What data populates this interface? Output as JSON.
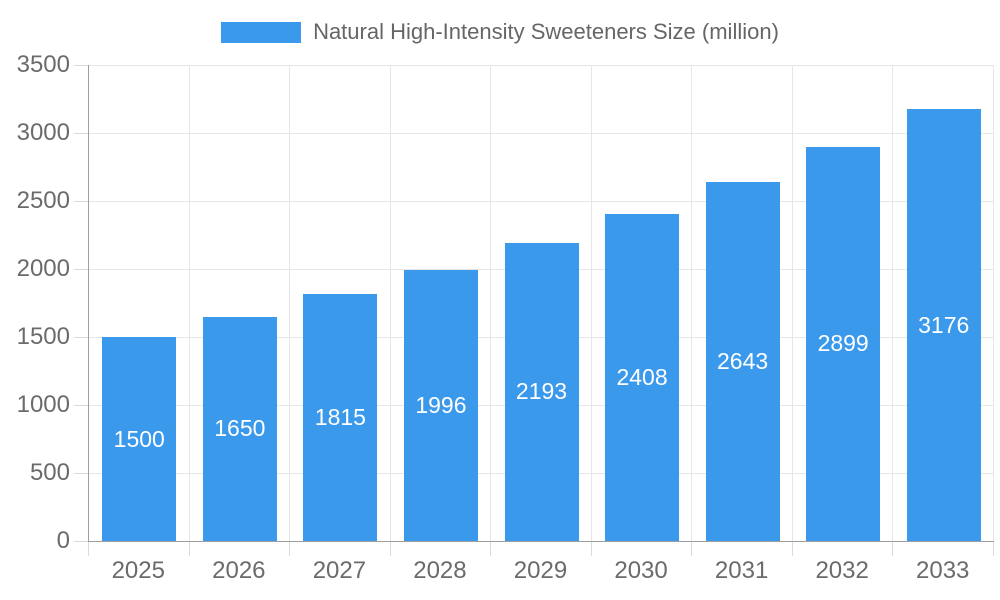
{
  "chart_data": {
    "type": "bar",
    "title": "Natural High-Intensity Sweeteners Size (million)",
    "categories": [
      "2025",
      "2026",
      "2027",
      "2028",
      "2029",
      "2030",
      "2031",
      "2032",
      "2033"
    ],
    "values": [
      1500,
      1650,
      1815,
      1996,
      2193,
      2408,
      2643,
      2899,
      3176
    ],
    "xlabel": "",
    "ylabel": "",
    "ylim": [
      0,
      3500
    ],
    "ytick_step": 500,
    "yticks": [
      0,
      500,
      1000,
      1500,
      2000,
      2500,
      3000,
      3500
    ],
    "grid": "both",
    "legend_position": "top-center",
    "legend_entries": [
      "Natural High-Intensity Sweeteners Size (million)"
    ],
    "colors": {
      "bar": "#3b99ec",
      "bar_value_label": "#ffffff",
      "axis_text": "#6b6b6b",
      "legend_text": "#666666",
      "gridline": "#e6e6e6",
      "axis_line": "#9e9e9e",
      "tick": "#d9d9d9",
      "background": "#ffffff"
    }
  }
}
